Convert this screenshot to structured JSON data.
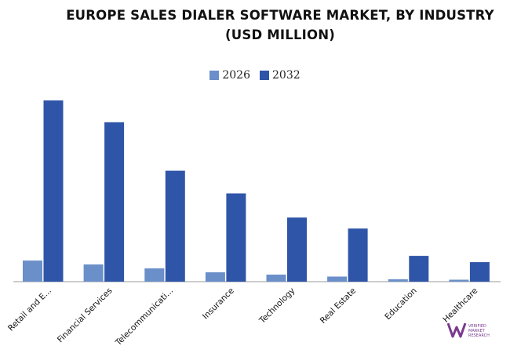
{
  "chart_data": {
    "type": "bar",
    "title": "EUROPE SALES DIALER SOFTWARE MARKET, BY INDUSTRY",
    "subtitle": "(USD MILLION)",
    "categories": [
      "Retail and E...",
      "Financial Services",
      "Telecommunicati...",
      "Insurance",
      "Technology",
      "Real Estate",
      "Education",
      "Healthcare"
    ],
    "series": [
      {
        "name": "2026",
        "values": [
          27.0,
          22.0,
          17.0,
          12.0,
          9.0,
          6.5,
          3.0,
          2.5
        ],
        "color": "#6a8fc9"
      },
      {
        "name": "2032",
        "values": [
          232.0,
          204.0,
          142.0,
          113.0,
          82.0,
          68.0,
          33.0,
          25.0
        ],
        "color": "#2f55a8"
      }
    ],
    "ylim": [
      0,
      240
    ],
    "grid": false,
    "legend": "top-center"
  },
  "watermark": {
    "brand_lines": [
      "VERIFIED",
      "MARKET",
      "RESEARCH"
    ],
    "color": "#7a3a8f"
  }
}
